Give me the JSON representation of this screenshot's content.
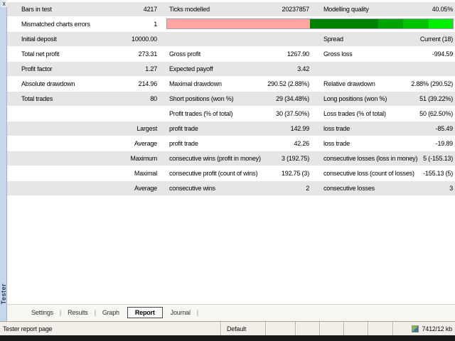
{
  "panel": {
    "title": "Tester",
    "close_label": "x"
  },
  "report": {
    "rows": [
      {
        "cells": [
          "Bars in test",
          "4217",
          "Ticks modelled",
          "20237857",
          "Modelling quality",
          "40.05%"
        ]
      },
      {
        "cells": [
          "Mismatched charts errors",
          "1",
          "",
          "",
          "",
          ""
        ],
        "quality_bar": true
      },
      {
        "cells": [
          "Initial deposit",
          "10000.00",
          "",
          "",
          "Spread",
          "Current (18)"
        ]
      },
      {
        "cells": [
          "Total net profit",
          "273.31",
          "Gross profit",
          "1267.90",
          "Gross loss",
          "-994.59"
        ]
      },
      {
        "cells": [
          "Profit factor",
          "1.27",
          "Expected payoff",
          "3.42",
          "",
          ""
        ]
      },
      {
        "cells": [
          "Absolute drawdown",
          "214.96",
          "Maximal drawdown",
          "290.52 (2.88%)",
          "Relative drawdown",
          "2.88% (290.52)"
        ]
      },
      {
        "cells": [
          "Total trades",
          "80",
          "Short positions (won %)",
          "29 (34.48%)",
          "Long positions (won %)",
          "51 (39.22%)"
        ]
      },
      {
        "cells": [
          "",
          "",
          "Profit trades (% of total)",
          "30 (37.50%)",
          "Loss trades (% of total)",
          "50 (62.50%)"
        ]
      },
      {
        "cells": [
          "",
          "Largest",
          "profit trade",
          "142.99",
          "loss trade",
          "-85.49"
        ]
      },
      {
        "cells": [
          "",
          "Average",
          "profit trade",
          "42.26",
          "loss trade",
          "-19.89"
        ]
      },
      {
        "cells": [
          "",
          "Maximum",
          "consecutive wins (profit in money)",
          "3 (192.75)",
          "consecutive losses (loss in money)",
          "5 (-155.13)"
        ]
      },
      {
        "cells": [
          "",
          "Maximal",
          "consecutive profit (count of wins)",
          "192.75 (3)",
          "consecutive loss (count of losses)",
          "-155.13 (5)"
        ]
      },
      {
        "cells": [
          "",
          "Average",
          "consecutive wins",
          "2",
          "consecutive losses",
          "3"
        ]
      }
    ],
    "quality_bar": {
      "border_color": "#93a0b4",
      "segments": [
        {
          "name": "mismatched-span",
          "color": "#ffa3a3",
          "pct": 50
        },
        {
          "name": "quality-dark-green",
          "color": "#018101",
          "pct": 24
        },
        {
          "name": "quality-green-2",
          "color": "#01a401",
          "pct": 8.5
        },
        {
          "name": "quality-green-3",
          "color": "#01c301",
          "pct": 9
        },
        {
          "name": "quality-green-4",
          "color": "#00ee00",
          "pct": 8.5
        }
      ]
    },
    "shaded_row_color": "#e6e6e6"
  },
  "tabs": [
    {
      "label": "Settings",
      "active": false
    },
    {
      "label": "Results",
      "active": false
    },
    {
      "label": "Graph",
      "active": false
    },
    {
      "label": "Report",
      "active": true
    },
    {
      "label": "Journal",
      "active": false
    }
  ],
  "statusbar": {
    "message": "Tester report page",
    "profile": "Default",
    "traffic": "7412/12 kb"
  },
  "colors": {
    "panel_edge": "#c6d7eb",
    "statusbar_bg": "#f0eee6",
    "traffic_green": "#85ba4e",
    "traffic_blue": "#41759b"
  }
}
